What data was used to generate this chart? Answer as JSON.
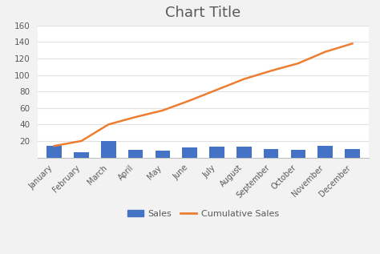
{
  "title": "Chart Title",
  "months": [
    "January",
    "February",
    "March",
    "April",
    "May",
    "June",
    "July",
    "August",
    "September",
    "October",
    "November",
    "December"
  ],
  "sales": [
    14,
    6,
    20,
    9,
    8,
    12,
    13,
    13,
    10,
    9,
    14,
    10
  ],
  "cumulative_sales": [
    14,
    20,
    40,
    49,
    57,
    69,
    82,
    95,
    105,
    114,
    128,
    138
  ],
  "bar_color": "#4472C4",
  "line_color": "#ED7D31",
  "ylim": [
    0,
    160
  ],
  "yticks": [
    0,
    20,
    40,
    60,
    80,
    100,
    120,
    140,
    160
  ],
  "title_fontsize": 13,
  "legend_labels": [
    "Sales",
    "Cumulative Sales"
  ],
  "bg_color": "#F2F2F2",
  "plot_bg_color": "#FFFFFF",
  "grid_color": "#E0E0E0",
  "spine_color": "#C0C0C0",
  "tick_color": "#595959",
  "title_color": "#595959"
}
